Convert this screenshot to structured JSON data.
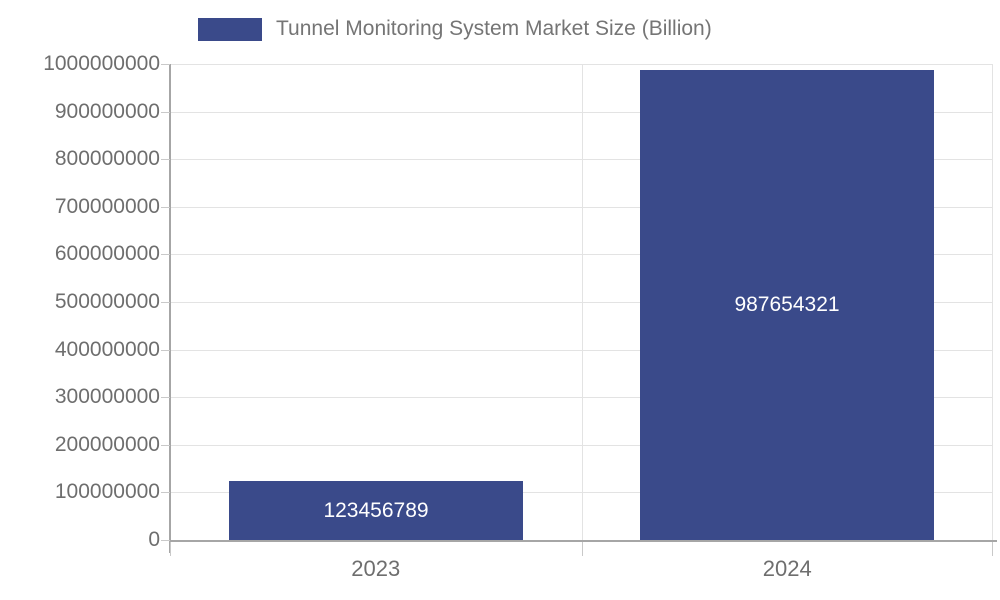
{
  "legend": {
    "label": "Tunnel Monitoring System Market Size (Billion)"
  },
  "colors": {
    "bar": "#3a4a8a",
    "legend_text": "#757575",
    "axis_label": "#6e6e6e",
    "axis_line": "#a6a6a6",
    "grid_line": "#e3e3e3",
    "tick": "#c9c9c9",
    "value_label": "#ffffff",
    "background": "#ffffff"
  },
  "chart_data": {
    "type": "bar",
    "title": "Tunnel Monitoring System Market Size (Billion)",
    "series_name": "Tunnel Monitoring System Market Size (Billion)",
    "categories": [
      "2023",
      "2024"
    ],
    "values": [
      123456789,
      987654321
    ],
    "value_labels": [
      "123456789",
      "987654321"
    ],
    "xlabel": "",
    "ylabel": "",
    "ylim": [
      0,
      1000000000
    ],
    "yticks": [
      0,
      100000000,
      200000000,
      300000000,
      400000000,
      500000000,
      600000000,
      700000000,
      800000000,
      900000000,
      1000000000
    ],
    "grid": true,
    "legend_position": "top"
  }
}
